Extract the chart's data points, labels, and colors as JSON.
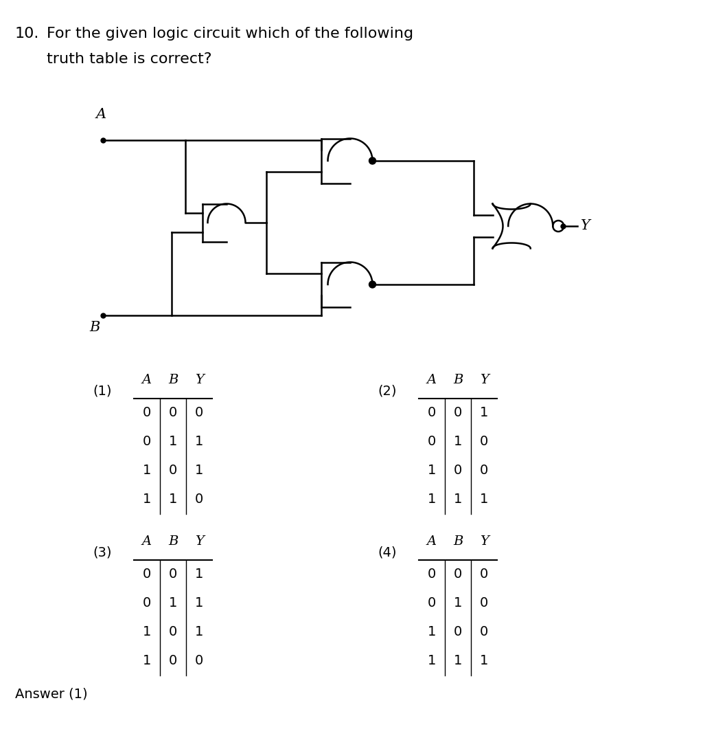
{
  "title_number": "10.",
  "title_line1": "For the given logic circuit which of the following",
  "title_line2": "truth table is correct?",
  "background_color": "#ffffff",
  "text_color": "#000000",
  "font_size_title": 16,
  "font_size_table": 14,
  "tables": [
    {
      "label": "(1)",
      "headers": [
        "A",
        "B",
        "Y"
      ],
      "rows": [
        [
          "0",
          "0",
          "0"
        ],
        [
          "0",
          "1",
          "1"
        ],
        [
          "1",
          "0",
          "1"
        ],
        [
          "1",
          "1",
          "0"
        ]
      ]
    },
    {
      "label": "(2)",
      "headers": [
        "A",
        "B",
        "Y"
      ],
      "rows": [
        [
          "0",
          "0",
          "1"
        ],
        [
          "0",
          "1",
          "0"
        ],
        [
          "1",
          "0",
          "0"
        ],
        [
          "1",
          "1",
          "1"
        ]
      ]
    },
    {
      "label": "(3)",
      "headers": [
        "A",
        "B",
        "Y"
      ],
      "rows": [
        [
          "0",
          "0",
          "1"
        ],
        [
          "0",
          "1",
          "1"
        ],
        [
          "1",
          "0",
          "1"
        ],
        [
          "1",
          "0",
          "0"
        ]
      ]
    },
    {
      "label": "(4)",
      "headers": [
        "A",
        "B",
        "Y"
      ],
      "rows": [
        [
          "0",
          "0",
          "0"
        ],
        [
          "0",
          "1",
          "0"
        ],
        [
          "1",
          "0",
          "0"
        ],
        [
          "1",
          "1",
          "1"
        ]
      ]
    }
  ],
  "answer_text": "Answer (1)"
}
